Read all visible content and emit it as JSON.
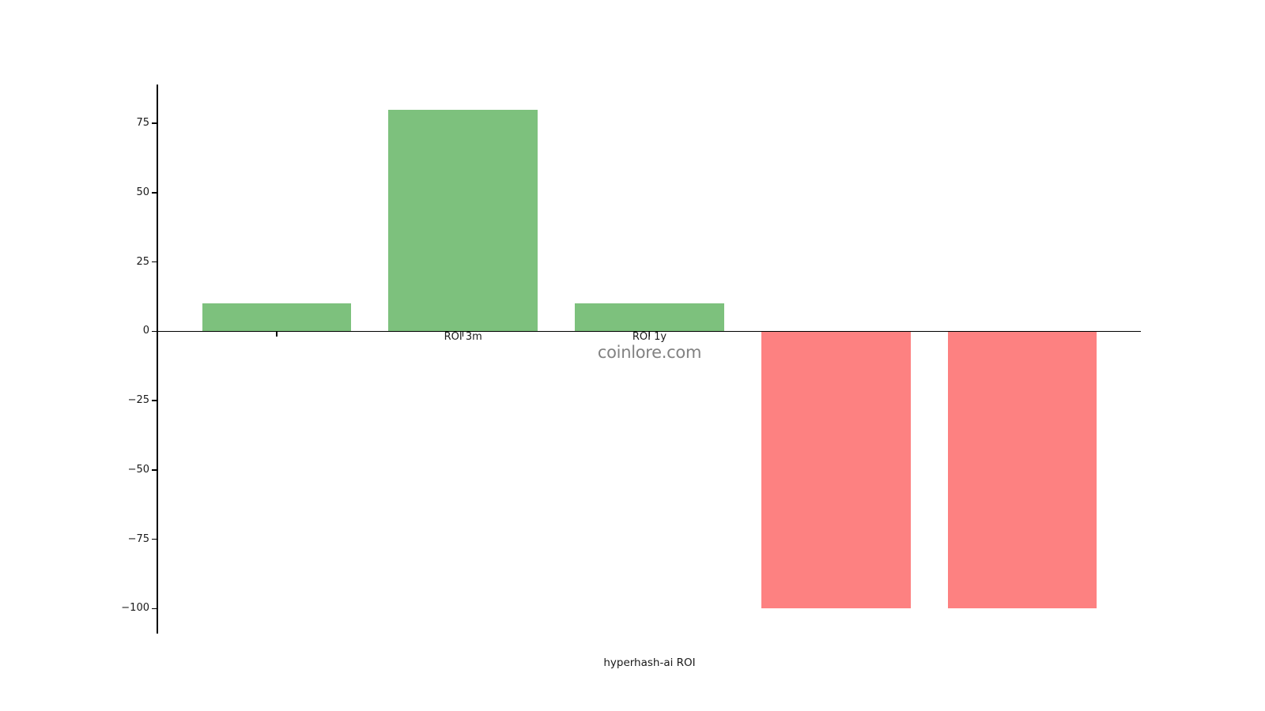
{
  "chart_data": {
    "type": "bar",
    "title": "",
    "xlabel": "hyperhash-ai ROI",
    "ylabel": "",
    "watermark": "coinlore.com",
    "categories": [
      "",
      "ROI 3m",
      "ROI 1y",
      "",
      ""
    ],
    "values": [
      10,
      80,
      10,
      -100,
      -100
    ],
    "positive_color": "#7dc17d",
    "negative_color": "#fd8181",
    "bar_width_fraction": 0.8,
    "ylim": [
      -109,
      89
    ],
    "yticks": [
      75,
      50,
      25,
      0,
      -25,
      -50,
      -75,
      -100
    ],
    "ytick_labels": [
      "75",
      "50",
      "25",
      "0",
      "−25",
      "−50",
      "−75",
      "−100"
    ],
    "xticks_visible": [
      true,
      true,
      true,
      false,
      false
    ],
    "grid": false,
    "legend": false,
    "axis_color": "#000000",
    "text_color": "#1a1a1a",
    "watermark_color": "#828282"
  }
}
